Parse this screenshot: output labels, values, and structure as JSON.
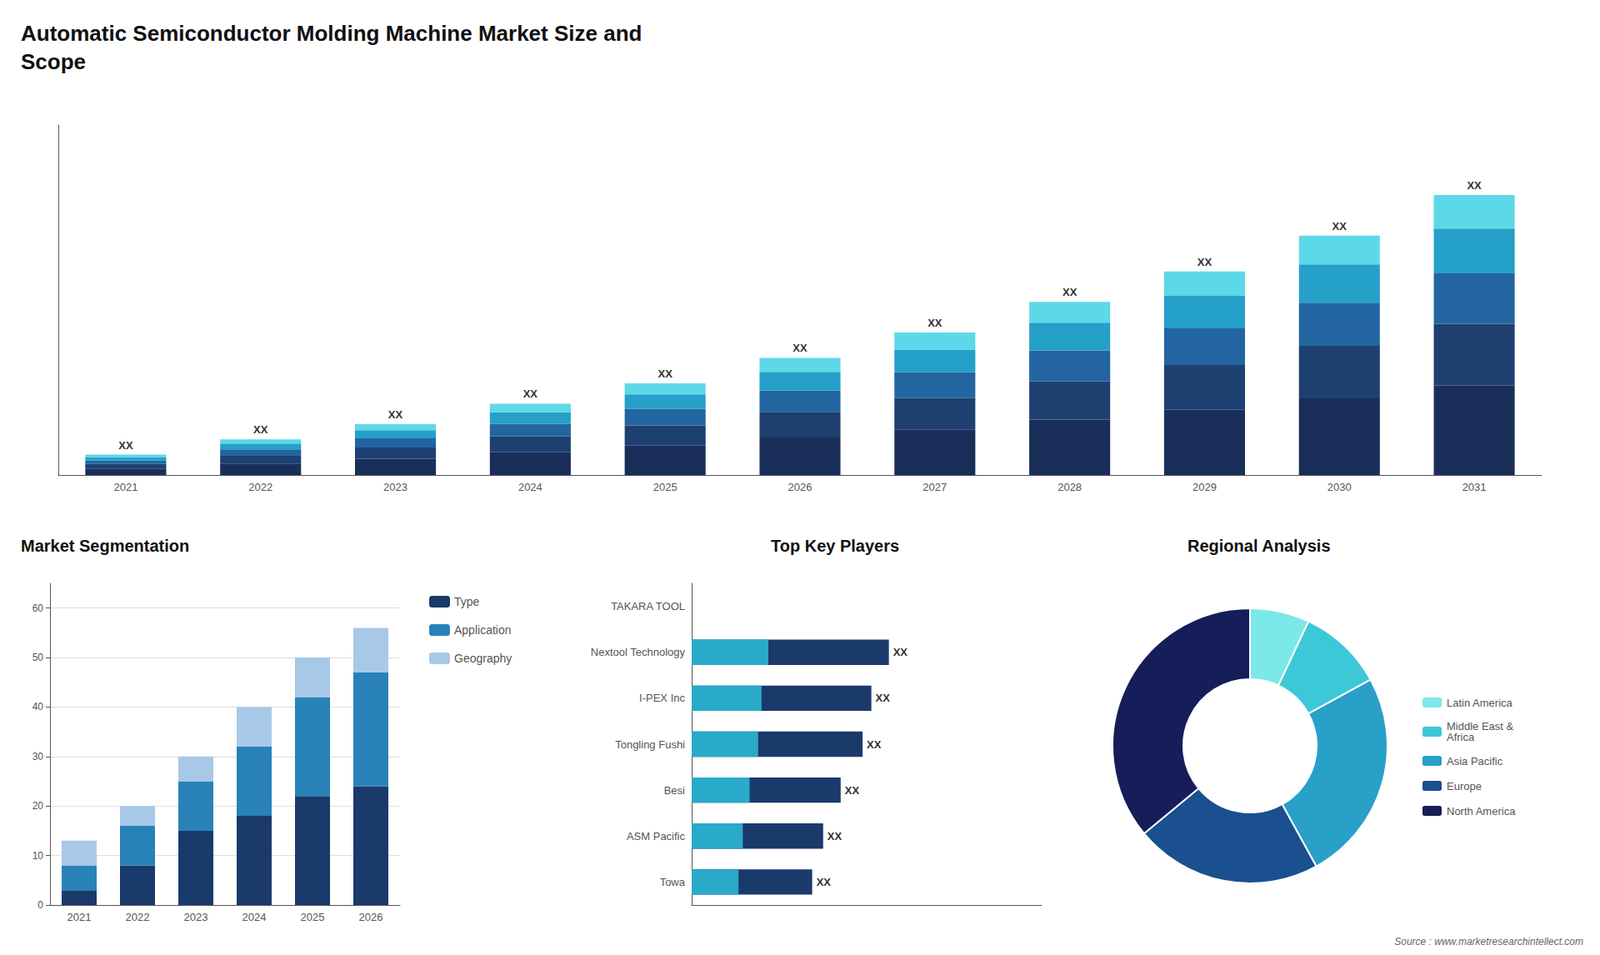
{
  "title": "Automatic Semiconductor Molding Machine Market Size and\nScope",
  "annotations": [
    "Source : www.marketresearchintellect.com"
  ],
  "chart_data": [
    {
      "type": "bar",
      "stacked": true,
      "categories": [
        "2021",
        "2022",
        "2023",
        "2024",
        "2025",
        "2026",
        "2027",
        "2028",
        "2029",
        "2030",
        "2031"
      ],
      "series": [
        {
          "color": "#1a2e5a",
          "values": [
            1.28,
            2.24,
            3.2,
            4.48,
            5.76,
            7.36,
            8.96,
            10.88,
            12.8,
            15.04,
            17.6
          ]
        },
        {
          "color": "#1e4070",
          "values": [
            0.88,
            1.54,
            2.2,
            3.08,
            3.96,
            5.06,
            6.16,
            7.48,
            8.8,
            10.34,
            12.1
          ]
        },
        {
          "color": "#2265a0",
          "values": [
            0.72,
            1.26,
            1.8,
            2.52,
            3.24,
            4.14,
            5.04,
            6.12,
            7.2,
            8.46,
            9.9
          ]
        },
        {
          "color": "#25a0c8",
          "values": [
            0.64,
            1.12,
            1.6,
            2.24,
            2.88,
            3.68,
            4.48,
            5.44,
            6.4,
            7.52,
            8.8
          ]
        },
        {
          "color": "#5dd8e8",
          "values": [
            0.48,
            0.84,
            1.2,
            1.68,
            2.16,
            2.76,
            3.36,
            4.08,
            4.8,
            5.64,
            6.6
          ]
        }
      ],
      "annotations": [
        "XX",
        "XX",
        "XX",
        "XX",
        "XX",
        "XX",
        "XX",
        "XX",
        "XX",
        "XX",
        "XX"
      ],
      "ylim": [
        0,
        68.75
      ],
      "yticks": [],
      "tick_labels": "x",
      "grid": false
    },
    {
      "type": "bar",
      "title": "Market Segmentation",
      "stacked": true,
      "categories": [
        "2021",
        "2022",
        "2023",
        "2024",
        "2025",
        "2026"
      ],
      "series": [
        {
          "name": "Type",
          "color": "#1a3a6b",
          "values": [
            3,
            8,
            15,
            18,
            22,
            24
          ]
        },
        {
          "name": "Application",
          "color": "#2882b8",
          "values": [
            5,
            8,
            10,
            14,
            20,
            23
          ]
        },
        {
          "name": "Geography",
          "color": "#a8c8e8",
          "values": [
            5,
            4,
            5,
            8,
            8,
            9
          ]
        }
      ],
      "ylim": [
        0,
        65
      ],
      "yticks": [
        0,
        10,
        20,
        30,
        40,
        50,
        60
      ],
      "grid": true,
      "legend": "right"
    },
    {
      "type": "bar",
      "title": "Top Key Players",
      "orientation": "horizontal",
      "stacked": false,
      "categories": [
        "TAKARA TOOL",
        "Nextool Technology",
        "I-PEX Inc",
        "Tongling Fushi",
        "Besi",
        "ASM Pacific",
        "Towa"
      ],
      "series": [
        {
          "color": "#1a3a6b",
          "values": [
            null,
            64.8,
            59.04,
            56.16,
            48.96,
            43.2,
            39.6
          ]
        },
        {
          "color": "#28aac8",
          "values": [
            null,
            25.2,
            22.96,
            21.84,
            19.04,
            16.8,
            15.4
          ]
        }
      ],
      "annotations": [
        null,
        "XX",
        "XX",
        "XX",
        "XX",
        "XX",
        "XX"
      ],
      "xlim": [
        0,
        115
      ],
      "xticks": [],
      "tick_labels": "y",
      "grid": false
    },
    {
      "type": "donut",
      "title": "Regional Analysis",
      "categories": [
        "Latin America",
        "Middle East &\nAfrica",
        "Asia Pacific",
        "Europe",
        "North America"
      ],
      "values": [
        7,
        10,
        25,
        22,
        36
      ],
      "colors": [
        "#7de8e8",
        "#3dc8d8",
        "#28a0c8",
        "#1a4f90",
        "#151e58"
      ],
      "legend": "right"
    }
  ]
}
